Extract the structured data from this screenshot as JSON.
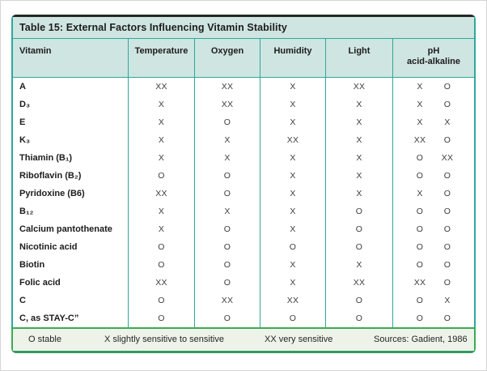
{
  "title": "Table 15: External Factors Influencing Vitamin Stability",
  "columns": {
    "vitamin": "Vitamin",
    "temperature": "Temperature",
    "oxygen": "Oxygen",
    "humidity": "Humidity",
    "light": "Light",
    "ph_line1": "pH",
    "ph_line2": "acid-alkaline"
  },
  "rows": [
    {
      "vitamin": "A",
      "temperature": "XX",
      "oxygen": "XX",
      "humidity": "X",
      "light": "XX",
      "ph_acid": "X",
      "ph_alkaline": "O"
    },
    {
      "vitamin": "D₃",
      "temperature": "X",
      "oxygen": "XX",
      "humidity": "X",
      "light": "X",
      "ph_acid": "X",
      "ph_alkaline": "O"
    },
    {
      "vitamin": "E",
      "temperature": "X",
      "oxygen": "O",
      "humidity": "X",
      "light": "X",
      "ph_acid": "X",
      "ph_alkaline": "X"
    },
    {
      "vitamin": "K₃",
      "temperature": "X",
      "oxygen": "X",
      "humidity": "XX",
      "light": "X",
      "ph_acid": "XX",
      "ph_alkaline": "O"
    },
    {
      "vitamin": "Thiamin (B₁)",
      "temperature": "X",
      "oxygen": "X",
      "humidity": "X",
      "light": "X",
      "ph_acid": "O",
      "ph_alkaline": "XX"
    },
    {
      "vitamin": "Riboflavin (B₂)",
      "temperature": "O",
      "oxygen": "O",
      "humidity": "X",
      "light": "X",
      "ph_acid": "O",
      "ph_alkaline": "O"
    },
    {
      "vitamin": "Pyridoxine (B6)",
      "temperature": "XX",
      "oxygen": "O",
      "humidity": "X",
      "light": "X",
      "ph_acid": "X",
      "ph_alkaline": "O"
    },
    {
      "vitamin": "B₁₂",
      "temperature": "X",
      "oxygen": "X",
      "humidity": "X",
      "light": "O",
      "ph_acid": "O",
      "ph_alkaline": "O"
    },
    {
      "vitamin": "Calcium pantothenate",
      "temperature": "X",
      "oxygen": "O",
      "humidity": "X",
      "light": "O",
      "ph_acid": "O",
      "ph_alkaline": "O"
    },
    {
      "vitamin": "Nicotinic acid",
      "temperature": "O",
      "oxygen": "O",
      "humidity": "O",
      "light": "O",
      "ph_acid": "O",
      "ph_alkaline": "O"
    },
    {
      "vitamin": "Biotin",
      "temperature": "O",
      "oxygen": "O",
      "humidity": "X",
      "light": "X",
      "ph_acid": "O",
      "ph_alkaline": "O"
    },
    {
      "vitamin": "Folic acid",
      "temperature": "XX",
      "oxygen": "O",
      "humidity": "X",
      "light": "XX",
      "ph_acid": "XX",
      "ph_alkaline": "O"
    },
    {
      "vitamin": "C",
      "temperature": "O",
      "oxygen": "XX",
      "humidity": "XX",
      "light": "O",
      "ph_acid": "O",
      "ph_alkaline": "X"
    },
    {
      "vitamin": "C, as STAY-C”",
      "temperature": "O",
      "oxygen": "O",
      "humidity": "O",
      "light": "O",
      "ph_acid": "O",
      "ph_alkaline": "O"
    }
  ],
  "legend": {
    "stable": "O stable",
    "slightly_sensitive": "X slightly sensitive to sensitive",
    "very_sensitive": "XX very sensitive",
    "sources": "Sources: Gadient, 1986"
  },
  "colors": {
    "teal_border": "#2ea89d",
    "header_background": "#cfe5e1",
    "footer_background": "#eef3ea",
    "footer_border_green": "#3caa57",
    "top_border_dark": "#232a21",
    "text": "#1c1c1c"
  }
}
